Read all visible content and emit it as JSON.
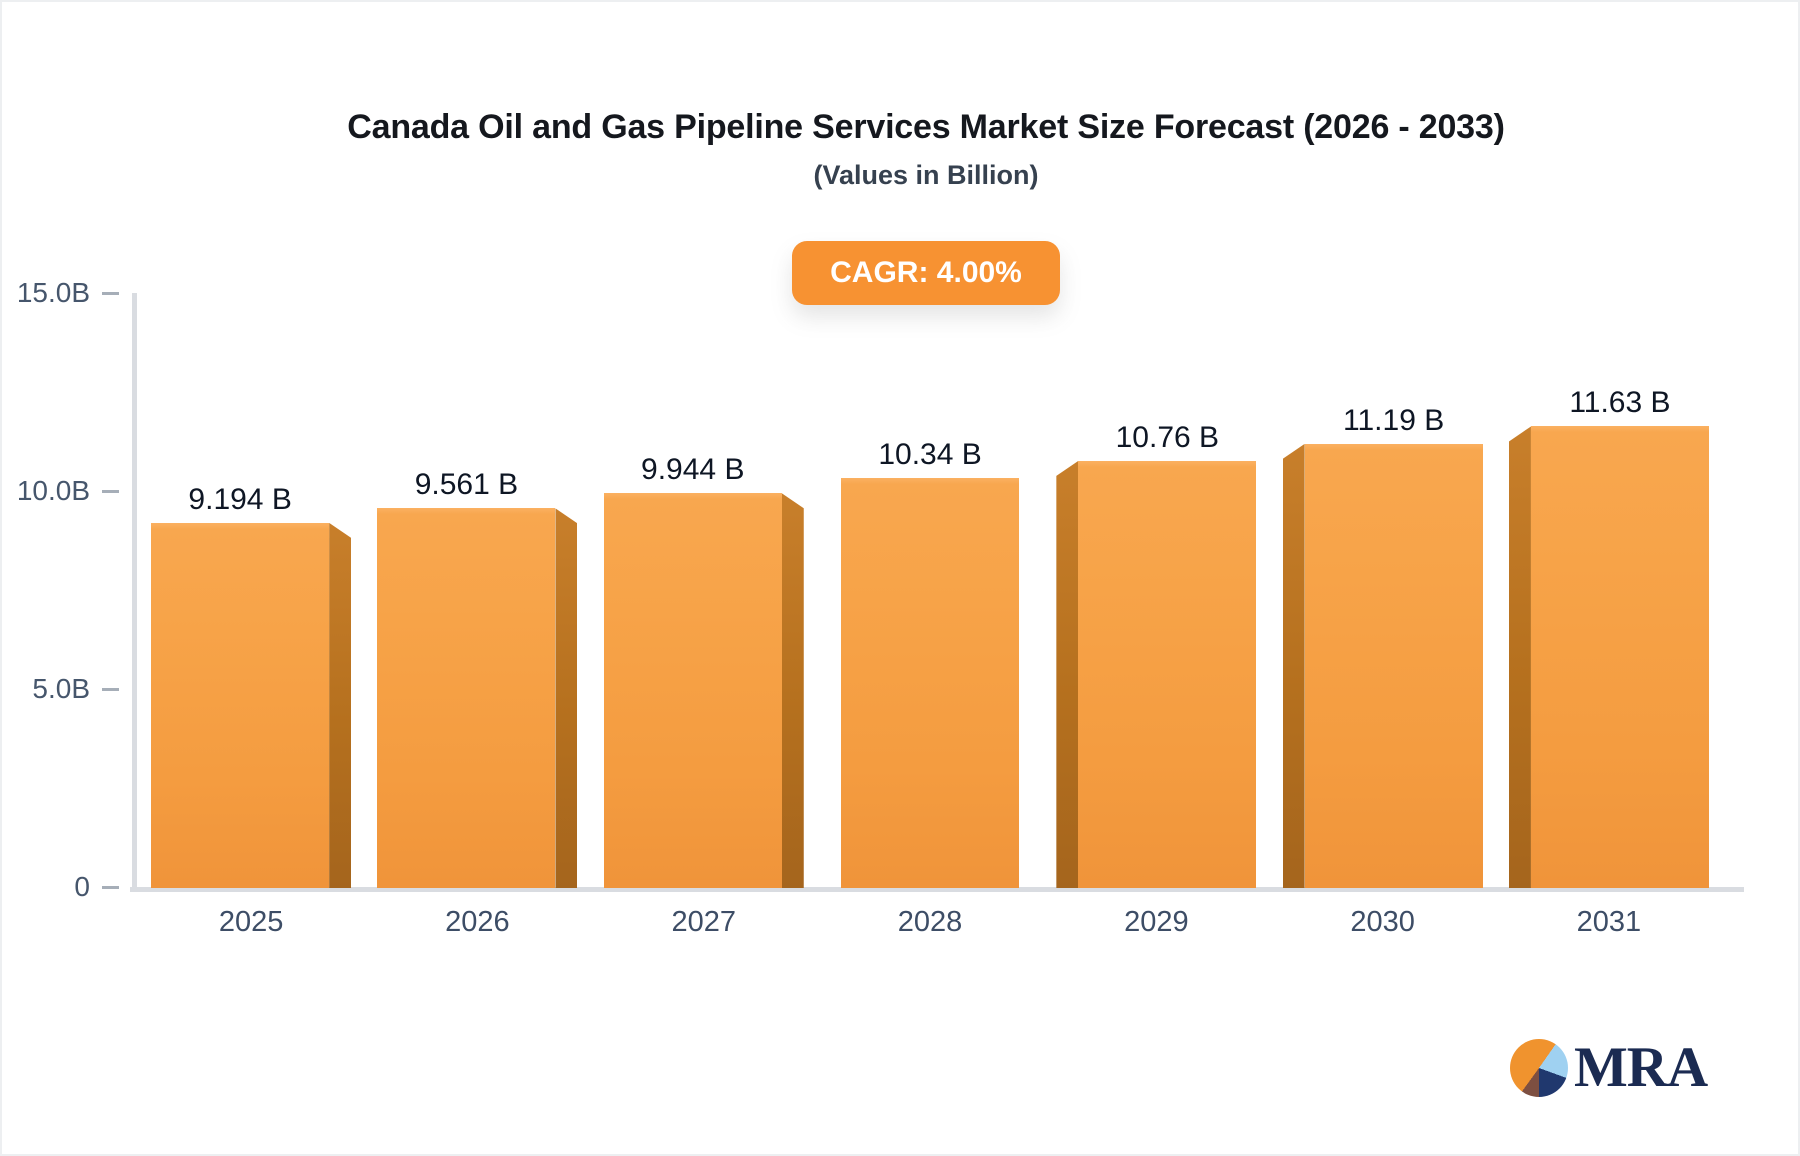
{
  "title": "Canada Oil and Gas Pipeline Services Market Size Forecast (2026 - 2033)",
  "subtitle": "(Values in Billion)",
  "badge": {
    "label": "CAGR: 4.00%"
  },
  "logo": {
    "text": "MRA"
  },
  "colors": {
    "bar_face": "#f6a044",
    "bar_side": "#b5701e",
    "badge_bg": "#f79232",
    "axis_line": "#d9dce1",
    "y_label": "#46566c",
    "x_label": "#3d4d66",
    "value_label": "#0e1624",
    "title": "#15181e",
    "subtitle": "#36414f",
    "logo_navy": "#1b2b52",
    "logo_orange": "#f0932e",
    "logo_blue": "#9fd1f1",
    "logo_brown": "#7d4f41"
  },
  "chart_data": {
    "type": "bar",
    "title": "Canada Oil and Gas Pipeline Services Market Size Forecast (2026 - 2033)",
    "subtitle": "(Values in Billion)",
    "categories": [
      "2025",
      "2026",
      "2027",
      "2028",
      "2029",
      "2030",
      "2031"
    ],
    "values": [
      9.194,
      9.561,
      9.944,
      10.34,
      10.76,
      11.19,
      11.63
    ],
    "value_labels": [
      "9.194 B",
      "9.561 B",
      "9.944 B",
      "10.34 B",
      "10.76 B",
      "11.19 B",
      "11.63 B"
    ],
    "y_ticks": [
      {
        "label": "15.0B",
        "value": 15
      },
      {
        "label": "10.0B",
        "value": 10
      },
      {
        "label": "5.0B",
        "value": 5
      },
      {
        "label": "0",
        "value": 0
      }
    ],
    "ylim": [
      0,
      15
    ],
    "xlabel": "",
    "ylabel": "",
    "grid": false,
    "legend": false,
    "annotations": [
      "CAGR: 4.00%"
    ]
  }
}
